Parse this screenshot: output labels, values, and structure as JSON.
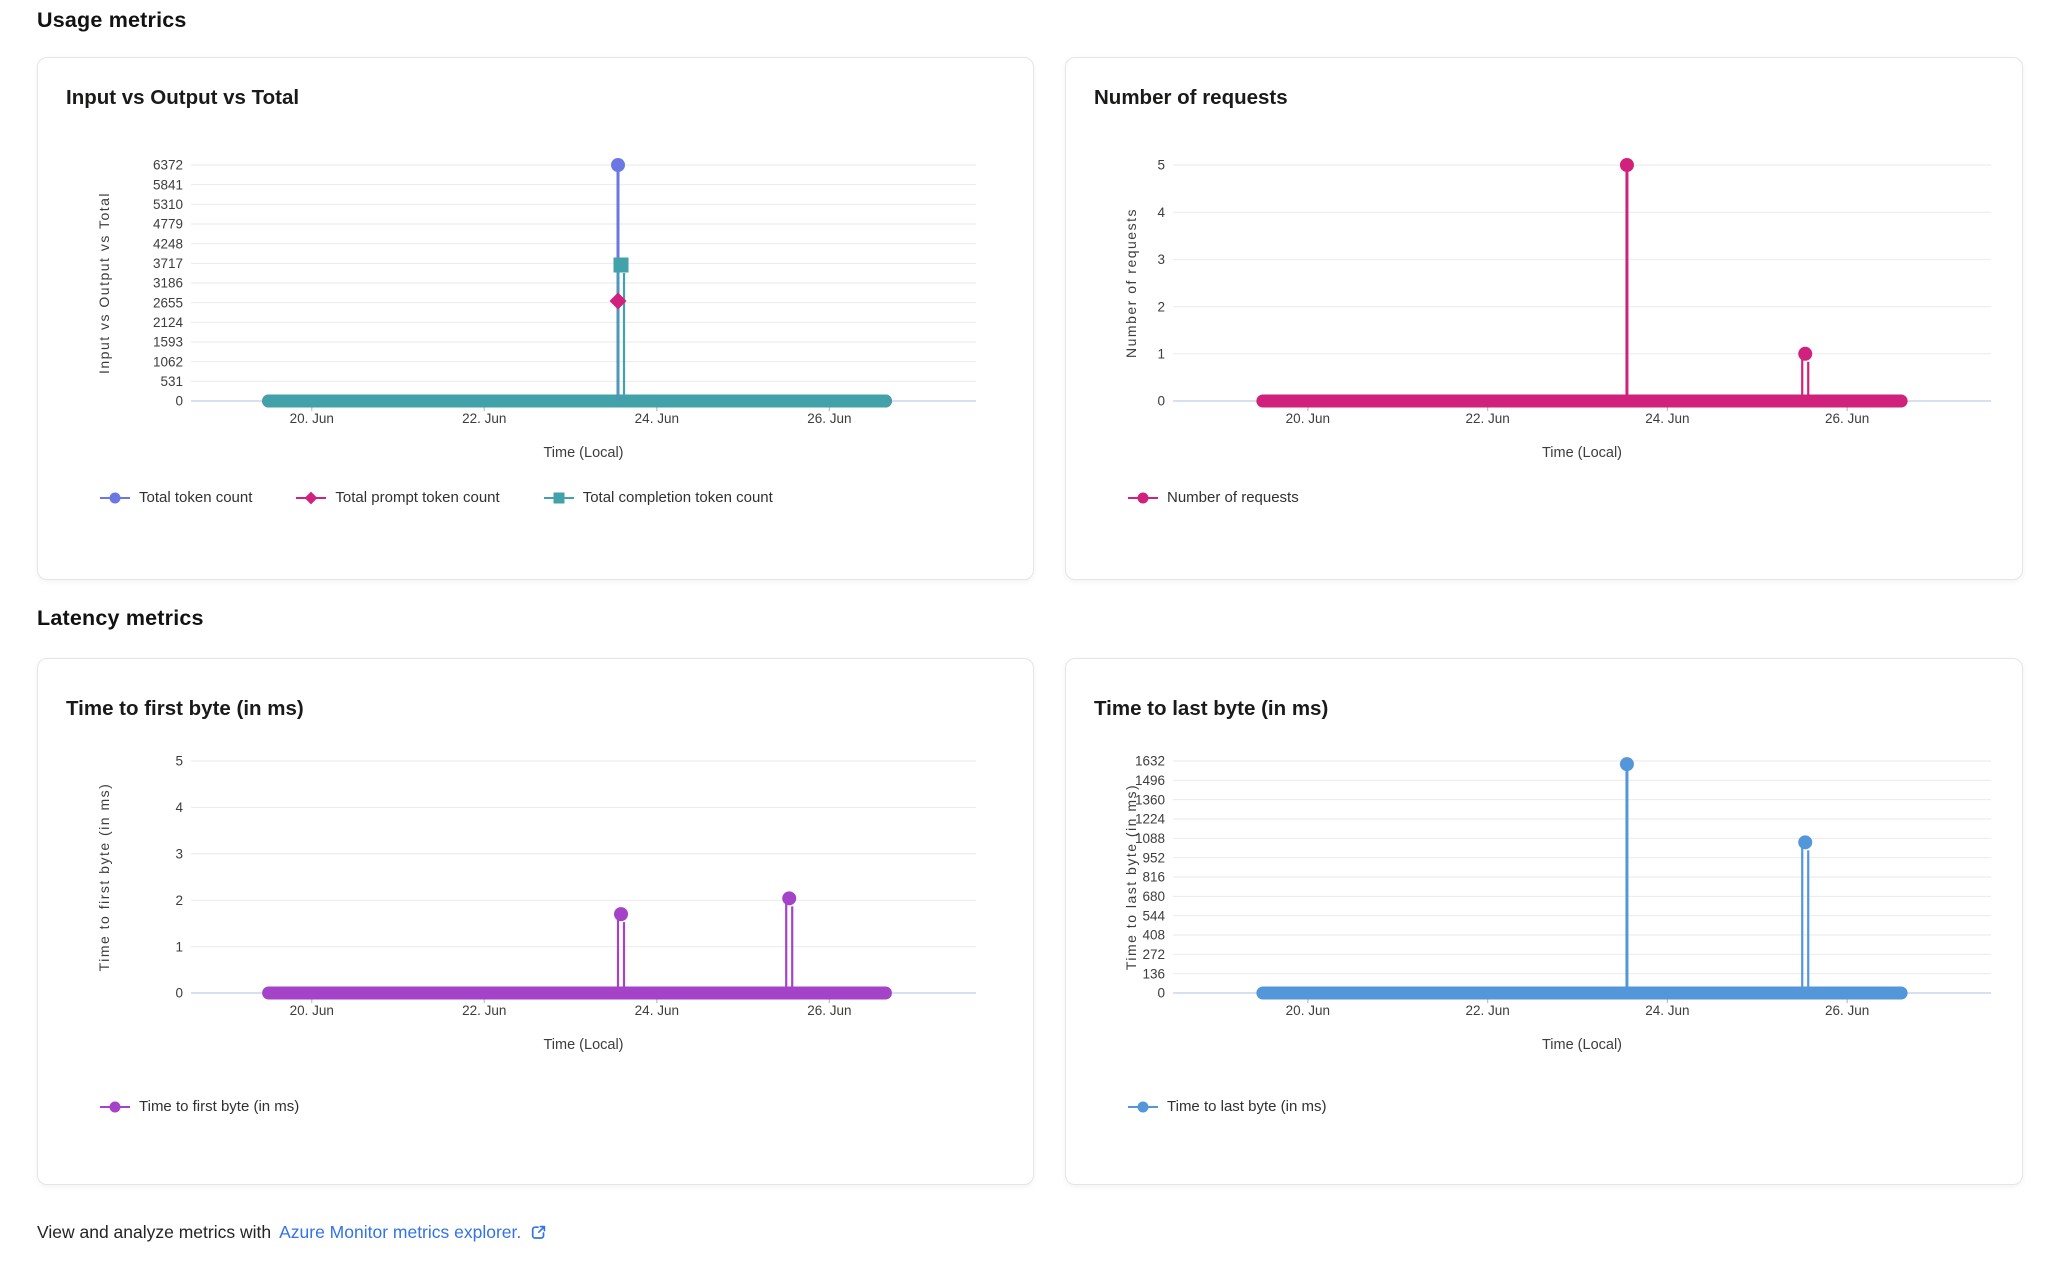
{
  "page": {
    "section1_title": "Usage metrics",
    "section2_title": "Latency metrics",
    "footer": {
      "text": "View and analyze metrics with",
      "link_label": "Azure Monitor metrics explorer.",
      "link_color": "#3273e8"
    }
  },
  "colors": {
    "total_token_blue": "#6b78e3",
    "prompt_token_pink": "#d0217d",
    "completion_token_teal": "#43a1a9",
    "requests_pink": "#d0217d",
    "ttfb_purple": "#a442c8",
    "ttlb_blue": "#5496da",
    "gridline": "#eaeaef",
    "zero_line": "#c9d5ee",
    "tick_mark": "#c2c2c2"
  },
  "chart_data": [
    {
      "id": "input-output-total",
      "type": "line",
      "title": "Input vs Output vs Total",
      "xlabel": "Time (Local)",
      "ylabel": "Input vs Output vs Total",
      "ylim": [
        0,
        6372
      ],
      "y_ticks": [
        0,
        531,
        1062,
        1593,
        2124,
        2655,
        3186,
        3717,
        4248,
        4779,
        5310,
        5841,
        6372
      ],
      "x_unit": "June date (local time)",
      "x_domain_days": [
        18.6,
        27.7
      ],
      "x_tick_days": [
        20,
        22,
        24,
        26
      ],
      "x_tick_labels": [
        "20. Jun",
        "22. Jun",
        "24. Jun",
        "26. Jun"
      ],
      "baseline": {
        "from_day": 19.5,
        "to_day": 26.65,
        "value": 0
      },
      "grid": true,
      "legend_position": "bottom",
      "series": [
        {
          "name": "Total token count",
          "color": "#6b78e3",
          "marker": "circle",
          "points": [
            {
              "day": 23.55,
              "value": 6372,
              "double": false,
              "line": true
            }
          ]
        },
        {
          "name": "Total prompt token count",
          "color": "#d0217d",
          "marker": "diamond",
          "points": [
            {
              "day": 23.55,
              "value": 2700,
              "double": false,
              "line": false
            }
          ]
        },
        {
          "name": "Total completion token count",
          "color": "#43a1a9",
          "marker": "square",
          "points": [
            {
              "day": 23.55,
              "value": 3672,
              "double": true,
              "line": true
            }
          ]
        }
      ]
    },
    {
      "id": "number-of-requests",
      "type": "line",
      "title": "Number of requests",
      "xlabel": "Time (Local)",
      "ylabel": "Number of requests",
      "ylim": [
        0,
        5
      ],
      "y_ticks": [
        0,
        1,
        2,
        3,
        4,
        5
      ],
      "x_unit": "June date (local time)",
      "x_domain_days": [
        18.5,
        27.6
      ],
      "x_tick_days": [
        20,
        22,
        24,
        26
      ],
      "x_tick_labels": [
        "20. Jun",
        "22. Jun",
        "24. Jun",
        "26. Jun"
      ],
      "baseline": {
        "from_day": 19.5,
        "to_day": 26.6,
        "value": 0
      },
      "grid": true,
      "legend_position": "bottom",
      "series": [
        {
          "name": "Number of requests",
          "color": "#d0217d",
          "marker": "circle",
          "points": [
            {
              "day": 23.55,
              "value": 5,
              "double": false,
              "line": true
            },
            {
              "day": 25.5,
              "value": 1,
              "double": true,
              "line": true
            }
          ]
        }
      ]
    },
    {
      "id": "time-to-first-byte",
      "type": "line",
      "title": "Time to first byte (in ms)",
      "xlabel": "Time (Local)",
      "ylabel": "Time to first byte (in ms)",
      "ylim": [
        0,
        5
      ],
      "y_ticks": [
        0,
        1,
        2,
        3,
        4,
        5
      ],
      "x_unit": "June date (local time)",
      "x_domain_days": [
        18.6,
        27.7
      ],
      "x_tick_days": [
        20,
        22,
        24,
        26
      ],
      "x_tick_labels": [
        "20. Jun",
        "22. Jun",
        "24. Jun",
        "26. Jun"
      ],
      "baseline": {
        "from_day": 19.5,
        "to_day": 26.65,
        "value": 0
      },
      "grid": true,
      "legend_position": "bottom",
      "series": [
        {
          "name": "Time to first byte (in ms)",
          "color": "#a442c8",
          "marker": "circle",
          "points": [
            {
              "day": 23.55,
              "value": 1.7,
              "double": true,
              "line": true
            },
            {
              "day": 25.5,
              "value": 2.04,
              "double": true,
              "line": true
            }
          ]
        }
      ]
    },
    {
      "id": "time-to-last-byte",
      "type": "line",
      "title": "Time to last byte (in ms)",
      "xlabel": "Time (Local)",
      "ylabel": "Time to last byte (in ms)",
      "ylim": [
        0,
        1632
      ],
      "y_ticks": [
        0,
        136,
        272,
        408,
        544,
        680,
        816,
        952,
        1088,
        1224,
        1360,
        1496,
        1632
      ],
      "x_unit": "June date (local time)",
      "x_domain_days": [
        18.5,
        27.6
      ],
      "x_tick_days": [
        20,
        22,
        24,
        26
      ],
      "x_tick_labels": [
        "20. Jun",
        "22. Jun",
        "24. Jun",
        "26. Jun"
      ],
      "baseline": {
        "from_day": 19.5,
        "to_day": 26.6,
        "value": 0
      },
      "grid": true,
      "legend_position": "bottom",
      "series": [
        {
          "name": "Time to last byte (in ms)",
          "color": "#5496da",
          "marker": "circle",
          "points": [
            {
              "day": 23.55,
              "value": 1610,
              "double": false,
              "line": true
            },
            {
              "day": 25.5,
              "value": 1060,
              "double": true,
              "line": true
            }
          ]
        }
      ]
    }
  ]
}
